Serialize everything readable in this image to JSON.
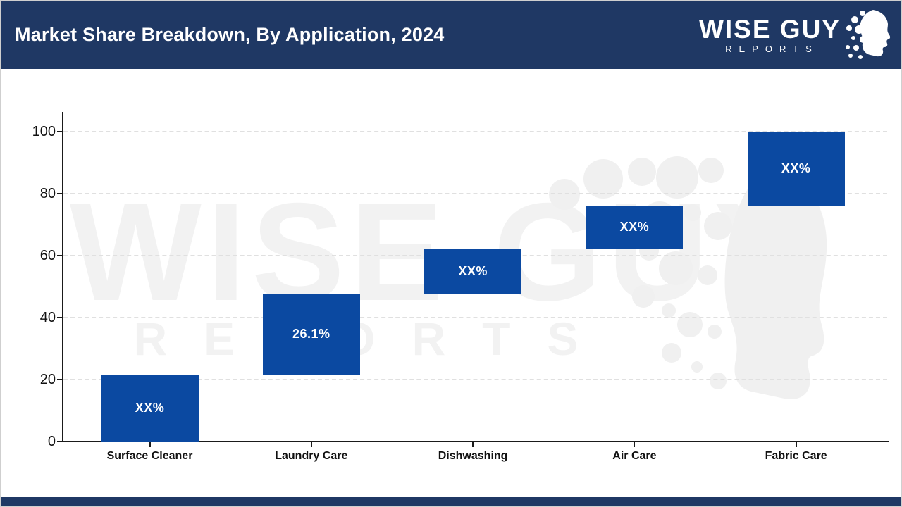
{
  "header": {
    "title": "Market Share Breakdown, By Application, 2024",
    "logo": {
      "line1": "WISE GUY",
      "line2": "REPORTS"
    }
  },
  "watermark": {
    "line1": "WISE GUY",
    "line2": "REPORTS"
  },
  "colors": {
    "header_bg": "#1f3864",
    "bar": "#0b49a1",
    "grid": "#e0e0e0",
    "axis": "#1a1a1a",
    "bar_label_text": "#ffffff",
    "watermark": "#f2f2f2"
  },
  "chart_data": {
    "type": "bar",
    "subtype": "floating-waterfall",
    "title": "Market Share Breakdown, By Application, 2024",
    "categories": [
      "Surface Cleaner",
      "Laundry Care",
      "Dishwashing",
      "Air Care",
      "Fabric Care"
    ],
    "bars": [
      {
        "category": "Surface Cleaner",
        "base": 0,
        "top": 21.5,
        "label": "XX%"
      },
      {
        "category": "Laundry Care",
        "base": 21.5,
        "top": 47.6,
        "label": "26.1%"
      },
      {
        "category": "Dishwashing",
        "base": 47.6,
        "top": 62.1,
        "label": "XX%"
      },
      {
        "category": "Air Care",
        "base": 62.1,
        "top": 76.1,
        "label": "XX%"
      },
      {
        "category": "Fabric Care",
        "base": 76.1,
        "top": 100,
        "label": "XX%"
      }
    ],
    "yticks": [
      0,
      20,
      40,
      60,
      80,
      100
    ],
    "ytick_labels": [
      "0",
      "20",
      "40",
      "60",
      "80",
      "100"
    ],
    "ylim": [
      0,
      100
    ],
    "xlabel": "",
    "ylabel": "",
    "grid": "horizontal-dashed",
    "legend": "none"
  }
}
